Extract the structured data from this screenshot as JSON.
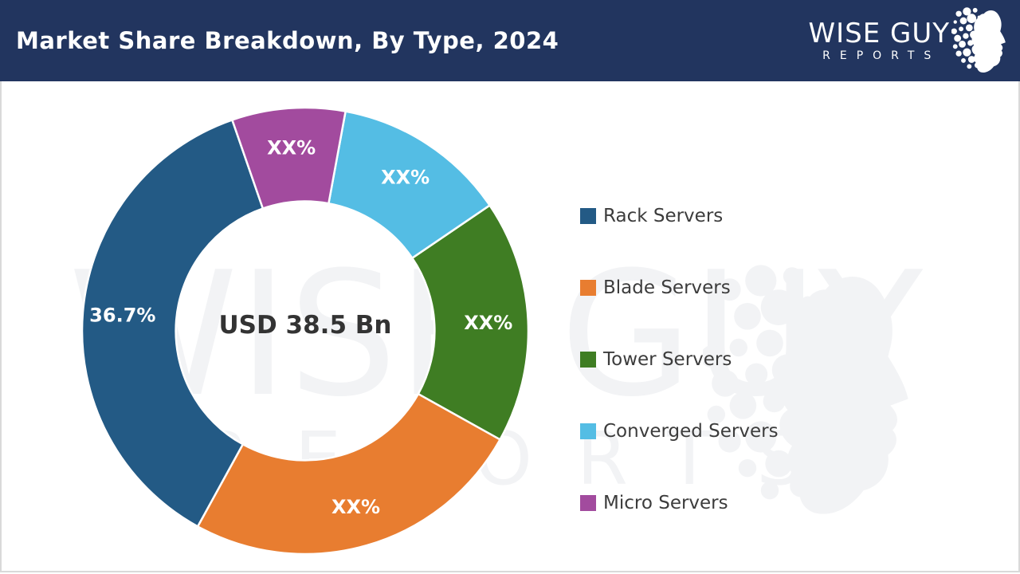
{
  "header": {
    "title": "Market Share Breakdown, By Type, 2024",
    "logo": {
      "line1": "WISE GUY",
      "line2": "REPORTS"
    }
  },
  "watermark": {
    "line1": "WISE GUY",
    "line2": "REPORTS"
  },
  "chart_data": {
    "type": "pie",
    "subtype": "donut",
    "title": "Market Share Breakdown, By Type, 2024",
    "center_label": "USD 38.5 Bn",
    "start_angle_deg": 109.1,
    "direction": "counterclockwise",
    "inner_radius_ratio": 0.58,
    "legend_position": "right",
    "label_color": "#ffffff",
    "segments": [
      {
        "label": "Rack Servers",
        "value_pct": 36.7,
        "display": "36.7%",
        "color": "#235a85"
      },
      {
        "label": "Blade Servers",
        "value_pct": 24.9,
        "display": "XX%",
        "color": "#e87d30"
      },
      {
        "label": "Tower Servers",
        "value_pct": 17.6,
        "display": "XX%",
        "color": "#3f7d23"
      },
      {
        "label": "Converged Servers",
        "value_pct": 12.6,
        "display": "XX%",
        "color": "#54bde4"
      },
      {
        "label": "Micro Servers",
        "value_pct": 8.2,
        "display": "XX%",
        "color": "#a24b9e"
      }
    ]
  }
}
